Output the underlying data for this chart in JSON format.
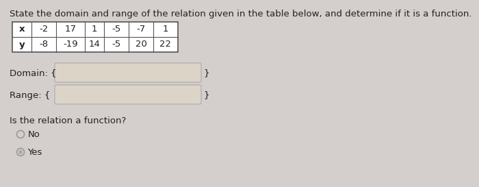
{
  "title": "State the domain and range of the relation given in the table below, and determine if it is a function.",
  "title_fontsize": 9.5,
  "bg_color": "#d4cecc",
  "table_x_header": "x",
  "table_y_header": "y",
  "x_values": [
    "-2",
    "17",
    "1",
    "-5",
    "-7",
    "1"
  ],
  "y_values": [
    "-8",
    "-19",
    "14",
    "-5",
    "20",
    "22"
  ],
  "domain_label": "Domain: {",
  "domain_close": "}",
  "range_label": "Range: {",
  "range_close": "}",
  "function_question": "Is the relation a function?",
  "option_no": "No",
  "option_yes": "Yes",
  "font_color": "#222222",
  "table_border_color": "#555555",
  "input_box_color": "#ddd4c8",
  "input_box_border": "#aaaaaa",
  "text_fontsize": 9.5,
  "radio_color": "#999999",
  "radio_fill": "#cccccc"
}
